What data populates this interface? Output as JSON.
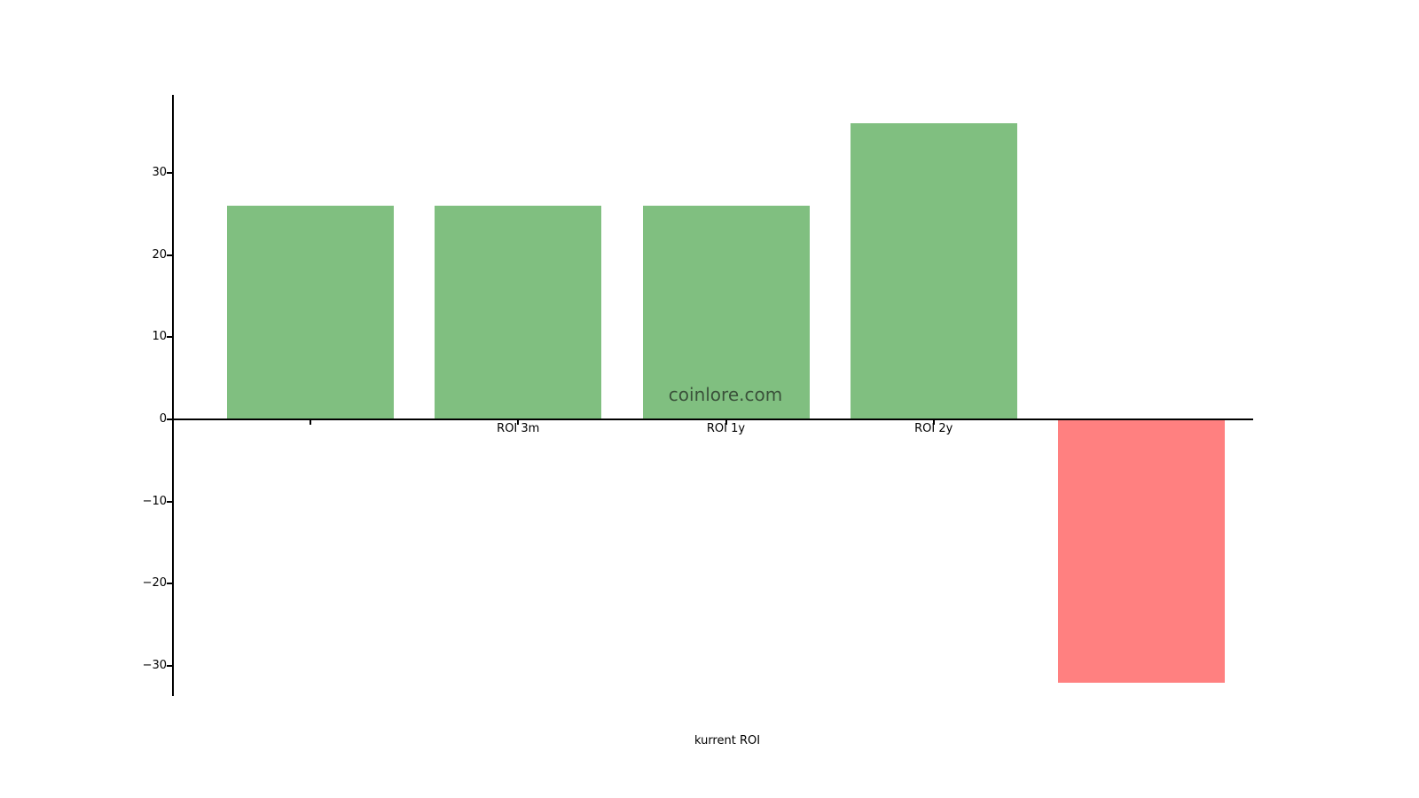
{
  "watermark": {
    "text": "coinlore.com"
  },
  "chart_data": {
    "type": "bar",
    "title": "",
    "xlabel": "kurrent ROI",
    "ylabel": "",
    "categories": [
      "",
      "ROI 3m",
      "ROI 1y",
      "ROI 2y",
      ""
    ],
    "values": [
      26,
      26,
      26,
      36,
      -32
    ],
    "series": [
      {
        "name": "kurrent ROI %",
        "values": [
          26,
          26,
          26,
          36,
          -32
        ]
      }
    ],
    "bar_colors": [
      "#80bf80",
      "#80bf80",
      "#80bf80",
      "#80bf80",
      "#ff8080"
    ],
    "positive_color": "#80bf80",
    "negative_color": "#ff8080",
    "yticks": [
      30,
      20,
      10,
      0,
      -10,
      -20,
      -30
    ],
    "ytick_labels": [
      "30",
      "20",
      "10",
      "0",
      "−10",
      "−20",
      "−30"
    ],
    "ylim": [
      -35.4,
      39.4
    ],
    "grid": false,
    "legend": null,
    "axis_color": "#000000",
    "background_color": "#ffffff"
  }
}
